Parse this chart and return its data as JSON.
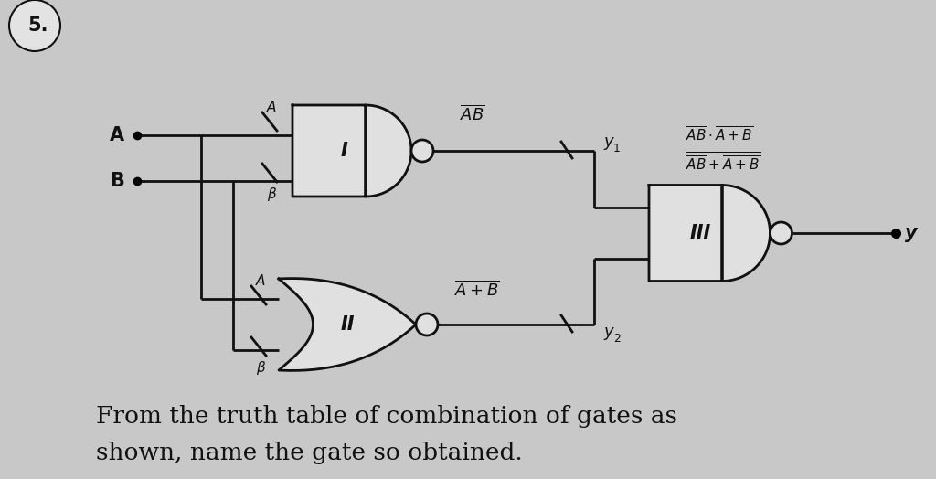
{
  "bg_color": "#c8c8c8",
  "question_number": "5.",
  "caption_line1": "From the truth table of combination of gates as",
  "caption_line2": "shown, name the gate so obtained.",
  "gate_I_label": "I",
  "gate_II_label": "II",
  "gate_III_label": "III",
  "input_A_label": "A",
  "input_B_label": "B",
  "output_y1_label": "y",
  "output_y2_label": "y",
  "output_y_label": "y",
  "font_color": "#111111",
  "line_color": "#111111",
  "gate_fill": "#e0e0e0",
  "caption_fontsize": 19
}
